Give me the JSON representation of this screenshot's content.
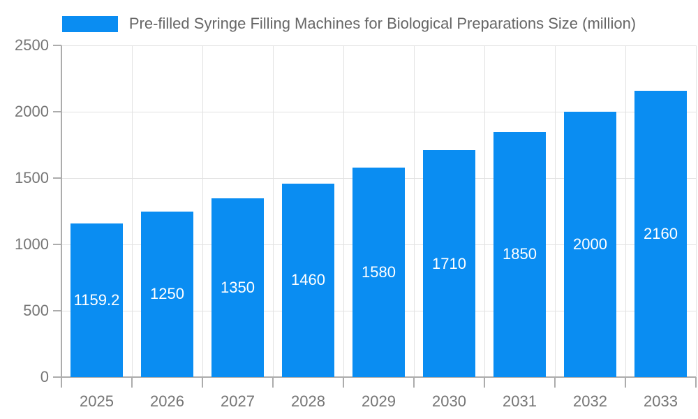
{
  "chart_data": {
    "type": "bar",
    "title": "Pre-filled Syringe Filling Machines for Biological Preparations Size (million)",
    "legend": [
      "Pre-filled Syringe Filling Machines for Biological Preparations Size (million)"
    ],
    "legend_position": "top-center",
    "categories": [
      "2025",
      "2026",
      "2027",
      "2028",
      "2029",
      "2030",
      "2031",
      "2032",
      "2033"
    ],
    "values": [
      1159.2,
      1250,
      1350,
      1460,
      1580,
      1710,
      1850,
      2000,
      2160
    ],
    "value_labels": [
      "1159.2",
      "1250",
      "1350",
      "1460",
      "1580",
      "1710",
      "1850",
      "2000",
      "2160"
    ],
    "xlabel": "",
    "ylabel": "",
    "ylim": [
      0,
      2500
    ],
    "yticks": [
      0,
      500,
      1000,
      1500,
      2000,
      2500
    ],
    "grid": true,
    "colors": {
      "bar": "#0A8DF2",
      "value_label": "#FFFFFF",
      "axis_line": "#ACACAC",
      "grid_line": "#E2E2E2",
      "tick_label": "#757575",
      "legend_text": "#666666",
      "background": "#FFFFFF"
    }
  }
}
